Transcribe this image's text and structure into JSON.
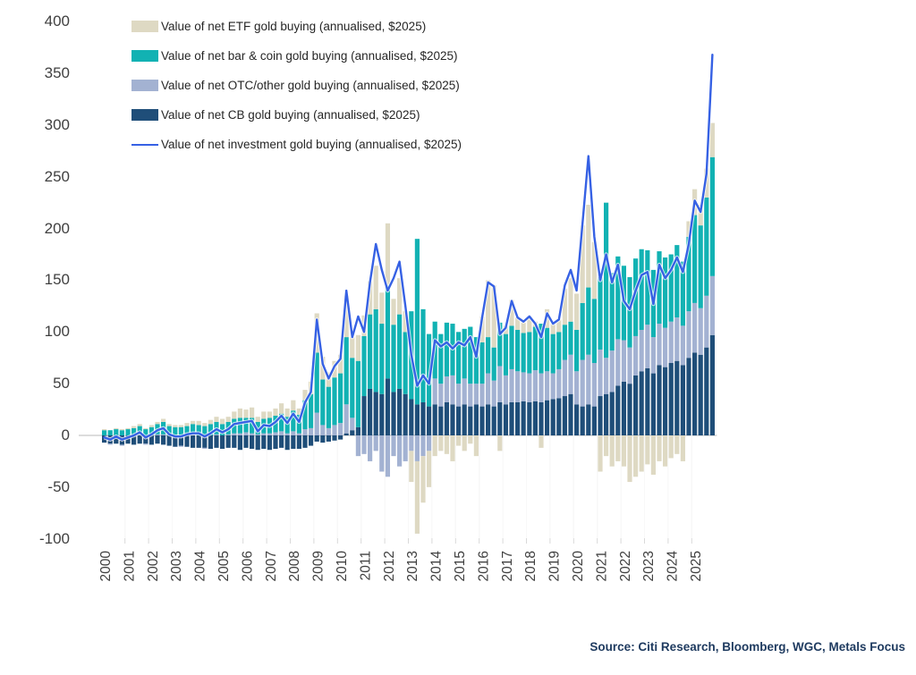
{
  "chart_data": {
    "type": "bar",
    "subtype": "stacked-bars-with-line-overlay",
    "title": "",
    "xlabel": "",
    "ylabel": "",
    "ylim": [
      -100,
      400
    ],
    "y_ticks": [
      400,
      350,
      300,
      250,
      200,
      150,
      100,
      50,
      0,
      -50,
      -100
    ],
    "grid": "zero-line and year separators only",
    "legend_position": "top-left-inside",
    "categories": [
      "2000",
      "2001",
      "2002",
      "2003",
      "2004",
      "2005",
      "2006",
      "2007",
      "2008",
      "2009",
      "2010",
      "2011",
      "2012",
      "2013",
      "2014",
      "2015",
      "2016",
      "2017",
      "2018",
      "2019",
      "2020",
      "2021",
      "2022",
      "2023",
      "2024",
      "2025"
    ],
    "bars_per_category": 4,
    "series": [
      {
        "name": "Value of net ETF gold buying (annualised, $2025)",
        "color": "#ded9c3",
        "values": [
          1,
          0,
          1,
          1,
          1,
          2,
          2,
          1,
          2,
          2,
          3,
          2,
          2,
          2,
          3,
          3,
          4,
          3,
          4,
          5,
          5,
          5,
          7,
          9,
          8,
          10,
          5,
          7,
          6,
          7,
          10,
          8,
          10,
          6,
          10,
          12,
          38,
          22,
          14,
          16,
          18,
          40,
          20,
          25,
          20,
          32,
          42,
          30,
          60,
          25,
          35,
          20,
          -30,
          -70,
          -45,
          -35,
          -20,
          -15,
          -18,
          -25,
          -10,
          -15,
          -8,
          -20,
          25,
          55,
          60,
          -15,
          8,
          25,
          12,
          10,
          15,
          5,
          -12,
          18,
          10,
          12,
          35,
          42,
          35,
          75,
          80,
          55,
          -35,
          -20,
          -30,
          -25,
          -30,
          -45,
          -40,
          -35,
          -28,
          -38,
          -25,
          -30,
          -22,
          -18,
          -25,
          15,
          25,
          20,
          28,
          33
        ]
      },
      {
        "name": "Value of net bar & coin gold buying (annualised, $2025)",
        "color": "#12b2b3",
        "values": [
          5,
          5,
          6,
          5,
          6,
          7,
          8,
          6,
          8,
          10,
          12,
          9,
          8,
          8,
          9,
          10,
          10,
          9,
          11,
          12,
          11,
          12,
          14,
          15,
          14,
          15,
          12,
          14,
          15,
          16,
          17,
          16,
          20,
          18,
          28,
          33,
          58,
          44,
          40,
          46,
          48,
          65,
          58,
          64,
          58,
          72,
          80,
          68,
          90,
          65,
          72,
          60,
          85,
          160,
          90,
          70,
          55,
          48,
          52,
          50,
          50,
          48,
          55,
          45,
          40,
          35,
          32,
          42,
          40,
          42,
          40,
          38,
          40,
          42,
          48,
          42,
          38,
          36,
          34,
          32,
          40,
          55,
          65,
          62,
          70,
          150,
          75,
          80,
          72,
          68,
          75,
          78,
          72,
          65,
          70,
          68,
          65,
          70,
          62,
          72,
          85,
          80,
          95,
          115
        ]
      },
      {
        "name": "Value of net OTC/other gold buying (annualised, $2025)",
        "color": "#a3b2d2",
        "values": [
          0,
          -1,
          0,
          -1,
          0,
          0,
          1,
          -1,
          0,
          1,
          1,
          0,
          0,
          -1,
          0,
          1,
          0,
          -1,
          0,
          1,
          0,
          1,
          2,
          2,
          3,
          2,
          1,
          2,
          2,
          3,
          4,
          2,
          4,
          2,
          6,
          7,
          22,
          10,
          7,
          10,
          12,
          28,
          12,
          -20,
          -18,
          -25,
          -15,
          -35,
          -40,
          -20,
          -30,
          -25,
          -15,
          -25,
          -20,
          -15,
          25,
          22,
          25,
          28,
          22,
          25,
          22,
          20,
          22,
          30,
          25,
          35,
          28,
          32,
          30,
          28,
          28,
          30,
          28,
          28,
          25,
          28,
          35,
          38,
          32,
          45,
          48,
          42,
          45,
          35,
          40,
          45,
          40,
          35,
          38,
          40,
          42,
          35,
          40,
          38,
          40,
          42,
          38,
          45,
          48,
          45,
          50,
          57
        ]
      },
      {
        "name": "Value of net CB gold buying (annualised, $2025)",
        "color": "#1f4e79",
        "values": [
          -7,
          -8,
          -8,
          -9,
          -8,
          -9,
          -8,
          -8,
          -9,
          -8,
          -9,
          -10,
          -11,
          -10,
          -11,
          -12,
          -12,
          -12,
          -13,
          -12,
          -13,
          -12,
          -12,
          -14,
          -12,
          -13,
          -14,
          -13,
          -14,
          -13,
          -12,
          -14,
          -13,
          -13,
          -12,
          -10,
          -6,
          -7,
          -6,
          -5,
          -4,
          2,
          5,
          8,
          38,
          45,
          42,
          40,
          55,
          42,
          45,
          40,
          35,
          30,
          32,
          28,
          30,
          28,
          32,
          30,
          28,
          30,
          28,
          30,
          28,
          30,
          28,
          32,
          30,
          32,
          32,
          33,
          32,
          33,
          32,
          34,
          35,
          36,
          38,
          40,
          30,
          28,
          30,
          28,
          38,
          40,
          42,
          48,
          52,
          50,
          58,
          62,
          65,
          60,
          68,
          66,
          70,
          72,
          68,
          75,
          80,
          78,
          85,
          97
        ]
      }
    ],
    "line": {
      "name": "Value of net investment gold buying (annualised, $2025)",
      "color": "#3661e4",
      "values": [
        -2,
        -4,
        -1,
        -4,
        -2,
        0,
        3,
        -2,
        1,
        5,
        7,
        1,
        -1,
        -1,
        1,
        2,
        2,
        -1,
        2,
        6,
        3,
        6,
        11,
        12,
        13,
        14,
        4,
        10,
        9,
        13,
        19,
        12,
        21,
        13,
        32,
        42,
        112,
        69,
        55,
        67,
        74,
        140,
        95,
        115,
        100,
        148,
        185,
        160,
        140,
        152,
        168,
        125,
        78,
        48,
        58,
        50,
        92,
        86,
        90,
        84,
        90,
        87,
        95,
        76,
        114,
        148,
        144,
        98,
        104,
        130,
        114,
        110,
        115,
        108,
        95,
        118,
        108,
        112,
        145,
        160,
        140,
        205,
        270,
        192,
        150,
        175,
        148,
        165,
        130,
        122,
        140,
        155,
        158,
        127,
        165,
        152,
        160,
        172,
        158,
        185,
        227,
        216,
        253,
        368
      ]
    }
  },
  "source": "Source: Citi Research, Bloomberg, WGC, Metals Focus",
  "colors": {
    "axis_text": "#404040",
    "source_text": "#1e3a5f",
    "zero_line": "#c6c6c6",
    "year_separator": "#d9d9d9"
  }
}
